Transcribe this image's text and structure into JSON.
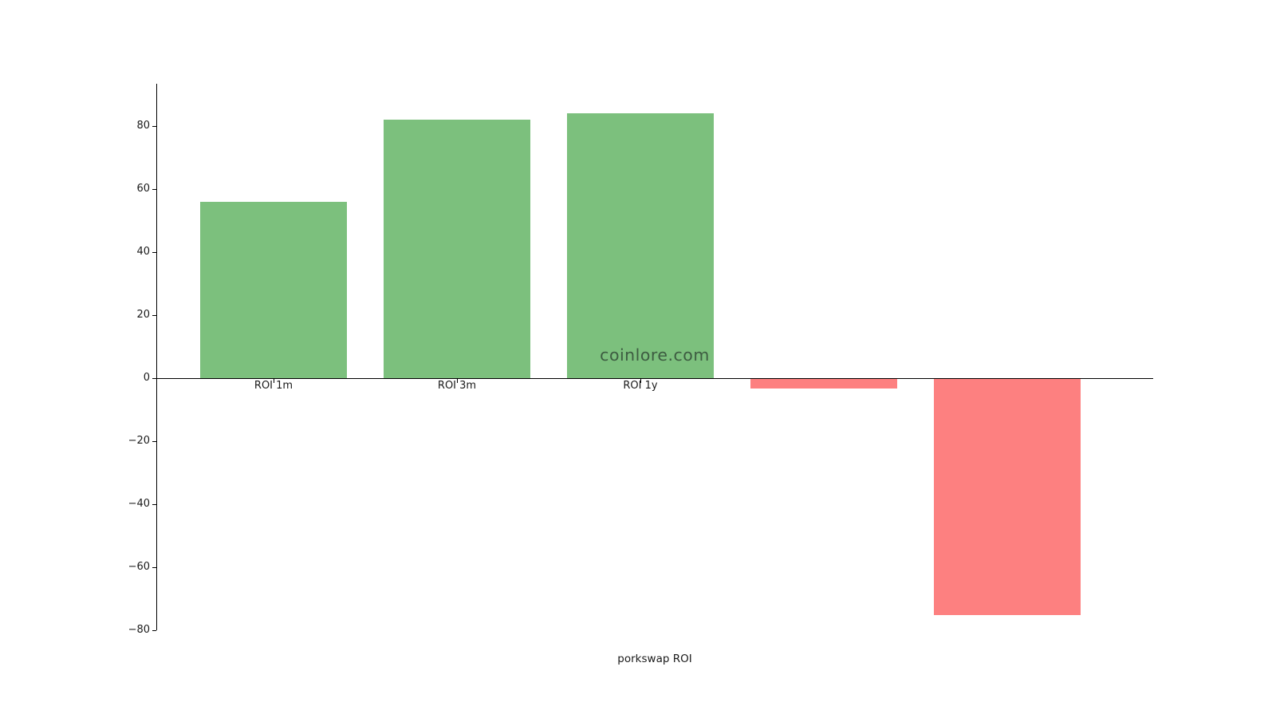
{
  "page": {
    "background_color": "#ffffff"
  },
  "chart_data": {
    "type": "bar",
    "title": "",
    "xlabel": "porkswap ROI",
    "ylabel": "",
    "categories": [
      "ROI 1m",
      "ROI 3m",
      "ROI 1y",
      "",
      ""
    ],
    "values": [
      56,
      82,
      84,
      -3,
      -75
    ],
    "series": [
      {
        "name": "porkswap ROI",
        "values": [
          56,
          82,
          84,
          -3,
          -75
        ]
      }
    ],
    "bar_colors": [
      "#7cc07d",
      "#7cc07d",
      "#7cc07d",
      "#fd8080",
      "#fd8080"
    ],
    "positive_color": "#7cc07d",
    "negative_color": "#fd8080",
    "yticks": [
      80,
      60,
      40,
      20,
      0,
      -20,
      -40,
      -60,
      -80
    ],
    "ytick_labels": [
      "80",
      "60",
      "40",
      "20",
      "0",
      "−20",
      "−40",
      "−60",
      "−80"
    ],
    "ylim": [
      -80,
      93
    ],
    "grid": false,
    "legend_position": "none",
    "axis_color": "#000000",
    "tick_text_color": "#1a1a1a",
    "watermark": {
      "text": "coinlore.com",
      "color": "#3d5c41"
    }
  }
}
